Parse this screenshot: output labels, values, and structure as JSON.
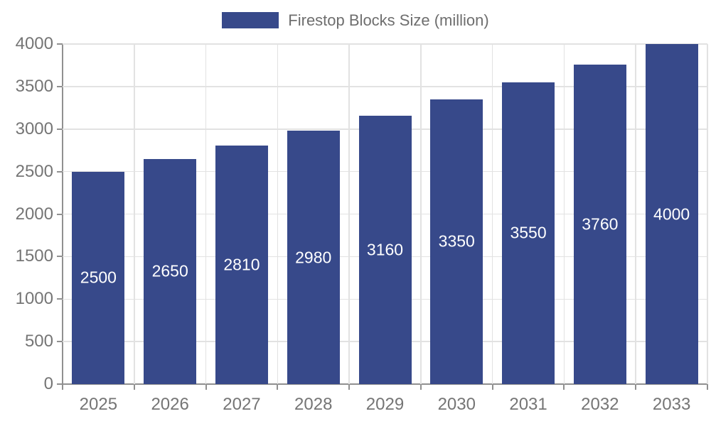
{
  "legend": {
    "items": [
      {
        "label": "Firestop Blocks Size (million)",
        "swatch_color": "#37498A"
      }
    ],
    "position": "top"
  },
  "chart_data": {
    "type": "bar",
    "title": "",
    "xlabel": "",
    "ylabel": "",
    "categories": [
      "2025",
      "2026",
      "2027",
      "2028",
      "2029",
      "2030",
      "2031",
      "2032",
      "2033"
    ],
    "series": [
      {
        "name": "Firestop Blocks Size (million)",
        "values": [
          2500,
          2650,
          2810,
          2980,
          3160,
          3350,
          3550,
          3760,
          4000
        ]
      }
    ],
    "bar_value_labels": [
      2500,
      2650,
      2810,
      2980,
      3160,
      3350,
      3550,
      3760,
      4000
    ],
    "ylim": [
      0,
      4000
    ],
    "y_ticks": [
      0,
      500,
      1000,
      1500,
      2000,
      2500,
      3000,
      3500,
      4000
    ],
    "grid": true,
    "legend_position": "top",
    "colors": {
      "bar": "#37498A",
      "grid": "#E2E2E2",
      "axis": "#909090",
      "tick_text": "#757575",
      "legend_text": "#6E6E6E",
      "value_label": "#FFFFFF"
    }
  }
}
